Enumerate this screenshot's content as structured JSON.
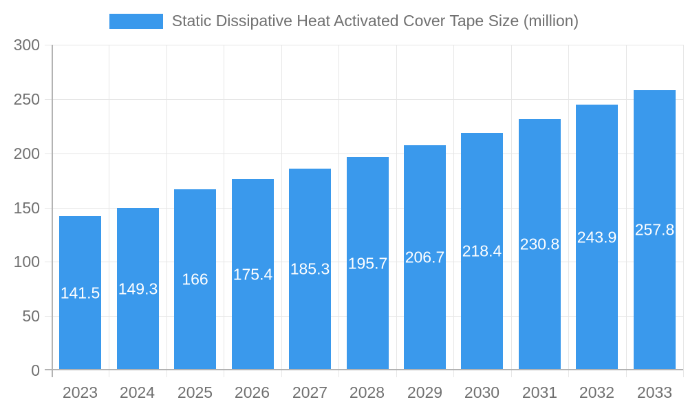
{
  "legend": {
    "label": "Static Dissipative Heat Activated Cover Tape Size (million)",
    "swatch_color": "#3A99EC"
  },
  "chart_data": {
    "type": "bar",
    "title": "Static Dissipative Heat Activated Cover Tape Size (million)",
    "categories": [
      "2023",
      "2024",
      "2025",
      "2026",
      "2027",
      "2028",
      "2029",
      "2030",
      "2031",
      "2032",
      "2033"
    ],
    "values": [
      141.5,
      149.3,
      166,
      175.4,
      185.3,
      195.7,
      206.7,
      218.4,
      230.8,
      243.9,
      257.8
    ],
    "value_labels": [
      "141.5",
      "149.3",
      "166",
      "175.4",
      "185.3",
      "195.7",
      "206.7",
      "218.4",
      "230.8",
      "243.9",
      "257.8"
    ],
    "xlabel": "",
    "ylabel": "",
    "ylim": [
      0,
      300
    ],
    "yticks": [
      0,
      50,
      100,
      150,
      200,
      250,
      300
    ],
    "grid": true,
    "legend_position": "top",
    "colors": {
      "bar": "#3A99EC",
      "value_label": "#FFFFFF",
      "axis_text": "#707070",
      "gridline": "#E6E6E6",
      "axis_line": "#B3B3B3"
    }
  }
}
